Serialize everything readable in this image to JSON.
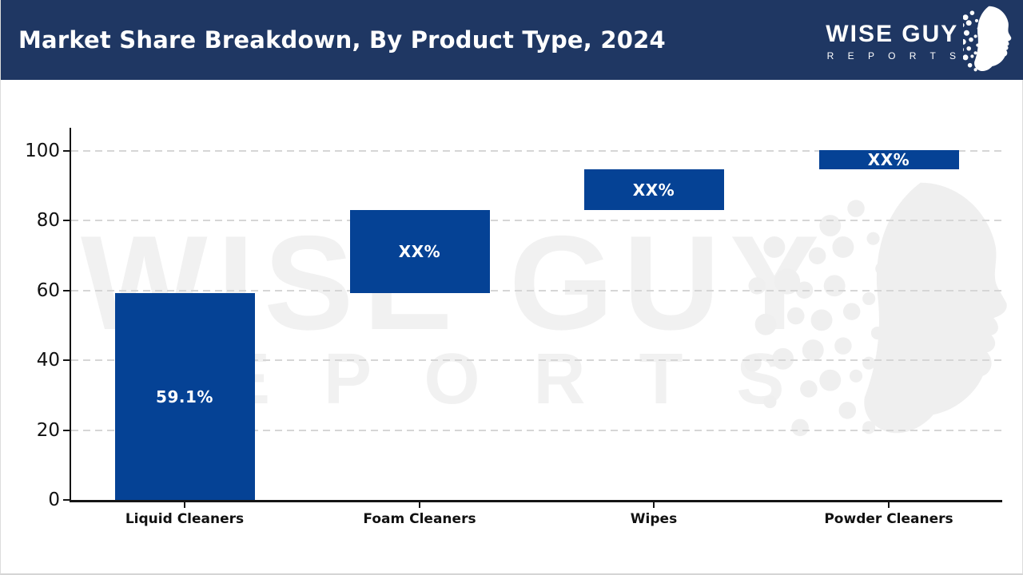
{
  "header": {
    "title": "Market Share Breakdown, By Product Type, 2024",
    "bg_color": "#1f3763",
    "logo": {
      "line1": "WISE GUY",
      "line2": "R E P O R T S"
    }
  },
  "watermark": {
    "line1": "WISE GUY",
    "line2": "R E P O R T S"
  },
  "chart_data": {
    "type": "bar",
    "subtype": "waterfall",
    "title": "Market Share Breakdown, By Product Type, 2024",
    "xlabel": "",
    "ylabel": "",
    "categories": [
      "Liquid Cleaners",
      "Foam Cleaners",
      "Wipes",
      "Powder Cleaners"
    ],
    "segments": [
      {
        "category": "Liquid Cleaners",
        "start": 0,
        "end": 59.1,
        "label": "59.1%"
      },
      {
        "category": "Foam Cleaners",
        "start": 59.1,
        "end": 83.0,
        "label": "XX%"
      },
      {
        "category": "Wipes",
        "start": 83.0,
        "end": 94.6,
        "label": "XX%"
      },
      {
        "category": "Powder Cleaners",
        "start": 94.6,
        "end": 100.2,
        "label": "XX%"
      }
    ],
    "y_ticks": [
      0,
      20,
      40,
      60,
      80,
      100
    ],
    "ylim": [
      0,
      106.5
    ],
    "grid": "horizontal dashed",
    "legend": "none",
    "bar_color": "#054295",
    "grid_color": "#d6d6d6",
    "value_label_color": "#ffffff"
  }
}
